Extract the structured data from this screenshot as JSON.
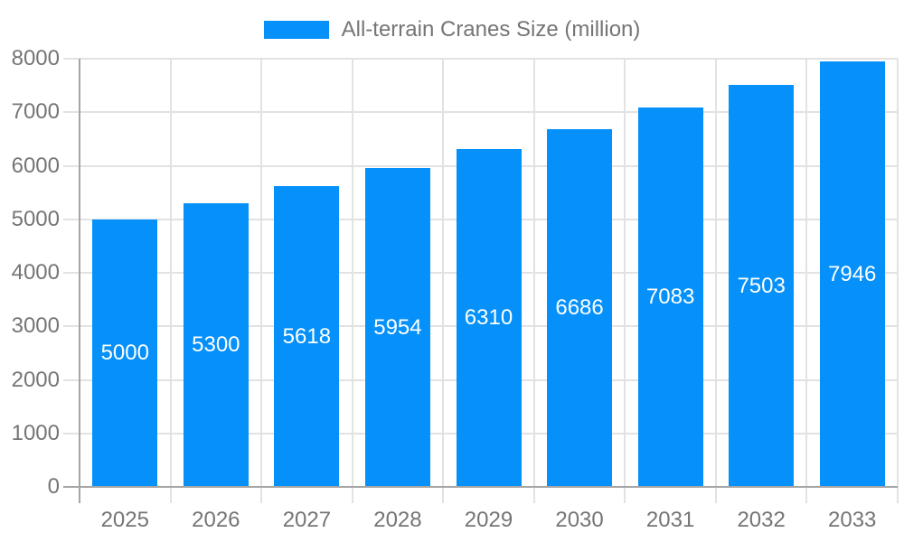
{
  "colors": {
    "bar": "#0590fa",
    "grid": "#e2e2e2",
    "axis": "#a5a5a5",
    "text": "#757575",
    "value_label": "#ffffff",
    "background": "#ffffff"
  },
  "chart_data": {
    "type": "bar",
    "title": "",
    "legend": "All-terrain Cranes Size (million)",
    "legend_position": "top",
    "categories": [
      "2025",
      "2026",
      "2027",
      "2028",
      "2029",
      "2030",
      "2031",
      "2032",
      "2033"
    ],
    "values": [
      5000,
      5300,
      5618,
      5954,
      6310,
      6686,
      7083,
      7503,
      7946
    ],
    "xlabel": "",
    "ylabel": "",
    "ylim": [
      0,
      8000
    ],
    "ytick_step": 1000,
    "ytick_labels": [
      "0",
      "1000",
      "2000",
      "3000",
      "4000",
      "5000",
      "6000",
      "7000",
      "8000"
    ],
    "grid": true,
    "value_labels": "inside-center"
  }
}
